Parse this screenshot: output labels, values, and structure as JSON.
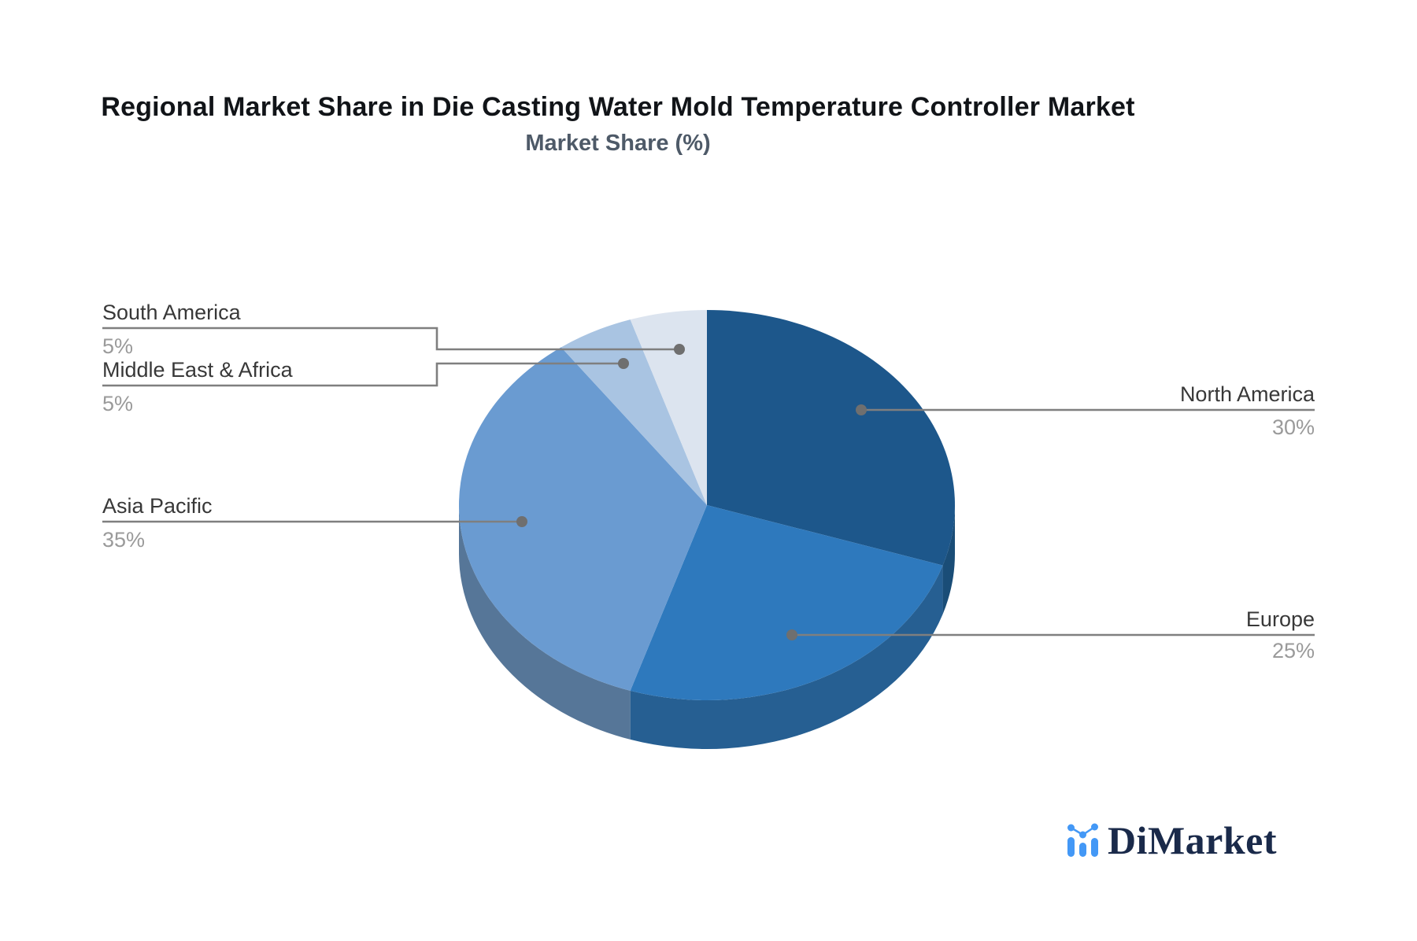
{
  "header": {
    "title": "Regional Market Share in Die Casting Water Mold Temperature Controller Market",
    "subtitle": "Market Share (%)"
  },
  "chart_data": {
    "type": "pie",
    "style": "3d",
    "title": "Regional Market Share in Die Casting Water Mold Temperature Controller Market",
    "subtitle": "Market Share (%)",
    "unit": "%",
    "start_angle": "12 o'clock",
    "direction": "clockwise",
    "legend_position": "callout-labels",
    "categories": [
      "North America",
      "Europe",
      "Asia Pacific",
      "Middle East & Africa",
      "South America"
    ],
    "values": [
      30,
      25,
      35,
      5,
      5
    ],
    "colors": [
      "#1d578b",
      "#2e79bd",
      "#6a9bd1",
      "#a9c4e2",
      "#dce4ef"
    ],
    "rim_colors": [
      "#1a4d77",
      "#265f92",
      "#567698",
      "#8fabc9",
      "#c3ccd9"
    ],
    "label_sides": [
      "right",
      "right",
      "left",
      "left",
      "left"
    ]
  },
  "callouts": {
    "north_america": {
      "name": "North America",
      "pct": "30%"
    },
    "europe": {
      "name": "Europe",
      "pct": "25%"
    },
    "asia_pacific": {
      "name": "Asia Pacific",
      "pct": "35%"
    },
    "middle_east_africa": {
      "name": "Middle East & Africa",
      "pct": "5%"
    },
    "south_america": {
      "name": "South America",
      "pct": "5%"
    }
  },
  "branding": {
    "logo_text": "DiMarket",
    "logo_text_color": "#1a2a4a",
    "logo_icon": "bar-line-chart-icon",
    "logo_icon_color": "#4398f6"
  },
  "colors": {
    "background": "#ffffff",
    "leader_line": "#7f7f7f",
    "leader_dot": "#6f6f6f",
    "label_text": "#383838",
    "pct_text": "#9a9a9a",
    "title_text": "#111418",
    "subtitle_text": "#4e5a68"
  }
}
